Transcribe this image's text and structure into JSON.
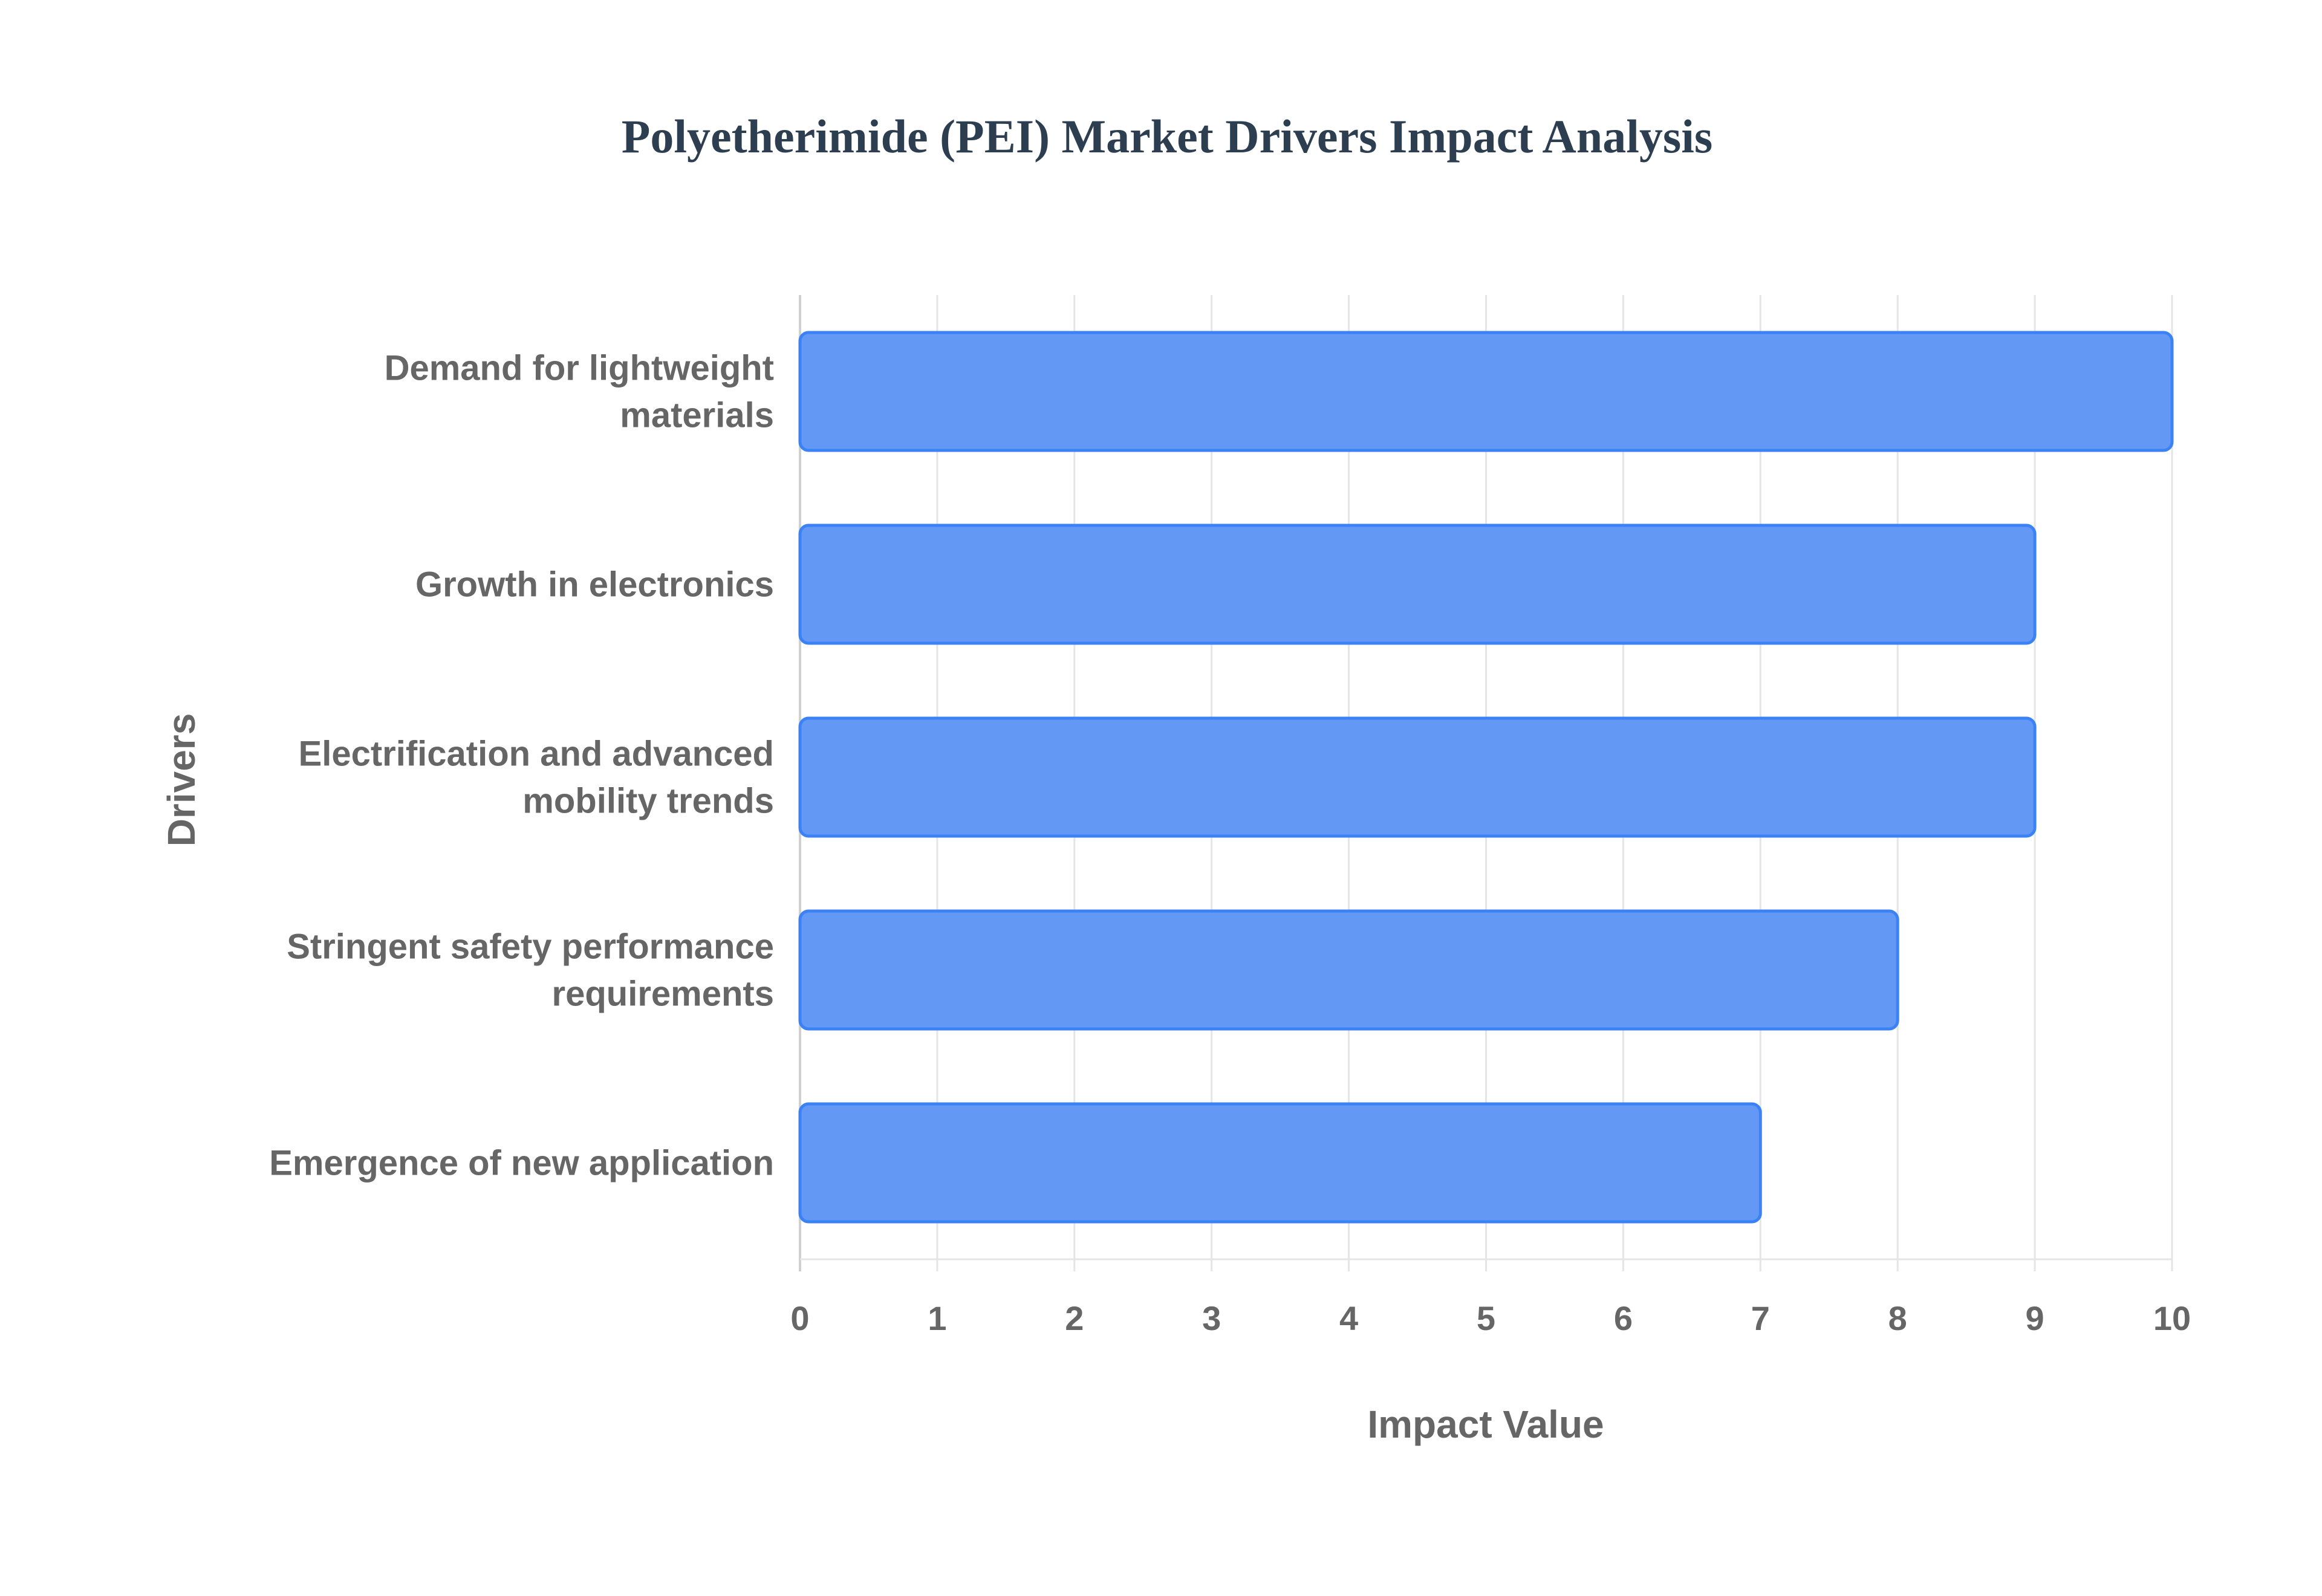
{
  "chart_data": {
    "type": "bar",
    "orientation": "horizontal",
    "title": "Polyetherimide (PEI) Market Drivers Impact Analysis",
    "xlabel": "Impact Value",
    "ylabel": "Drivers",
    "categories": [
      [
        "Demand for lightweight",
        "materials"
      ],
      [
        "Growth in electronics"
      ],
      [
        "Electrification and advanced",
        "mobility trends"
      ],
      [
        "Stringent safety performance",
        "requirements"
      ],
      [
        "Emergence of new application"
      ]
    ],
    "values": [
      10,
      9,
      9,
      8,
      7
    ],
    "xlim": [
      0,
      10
    ],
    "xticks": [
      "0",
      "1",
      "2",
      "3",
      "4",
      "5",
      "6",
      "7",
      "8",
      "9",
      "10"
    ],
    "grid": true,
    "legend": "none",
    "colors": {
      "fill": "#6399f5",
      "border": "#3b82f6",
      "grid": "#e5e5e5",
      "title": "#2c3e50",
      "text": "#666666"
    }
  }
}
